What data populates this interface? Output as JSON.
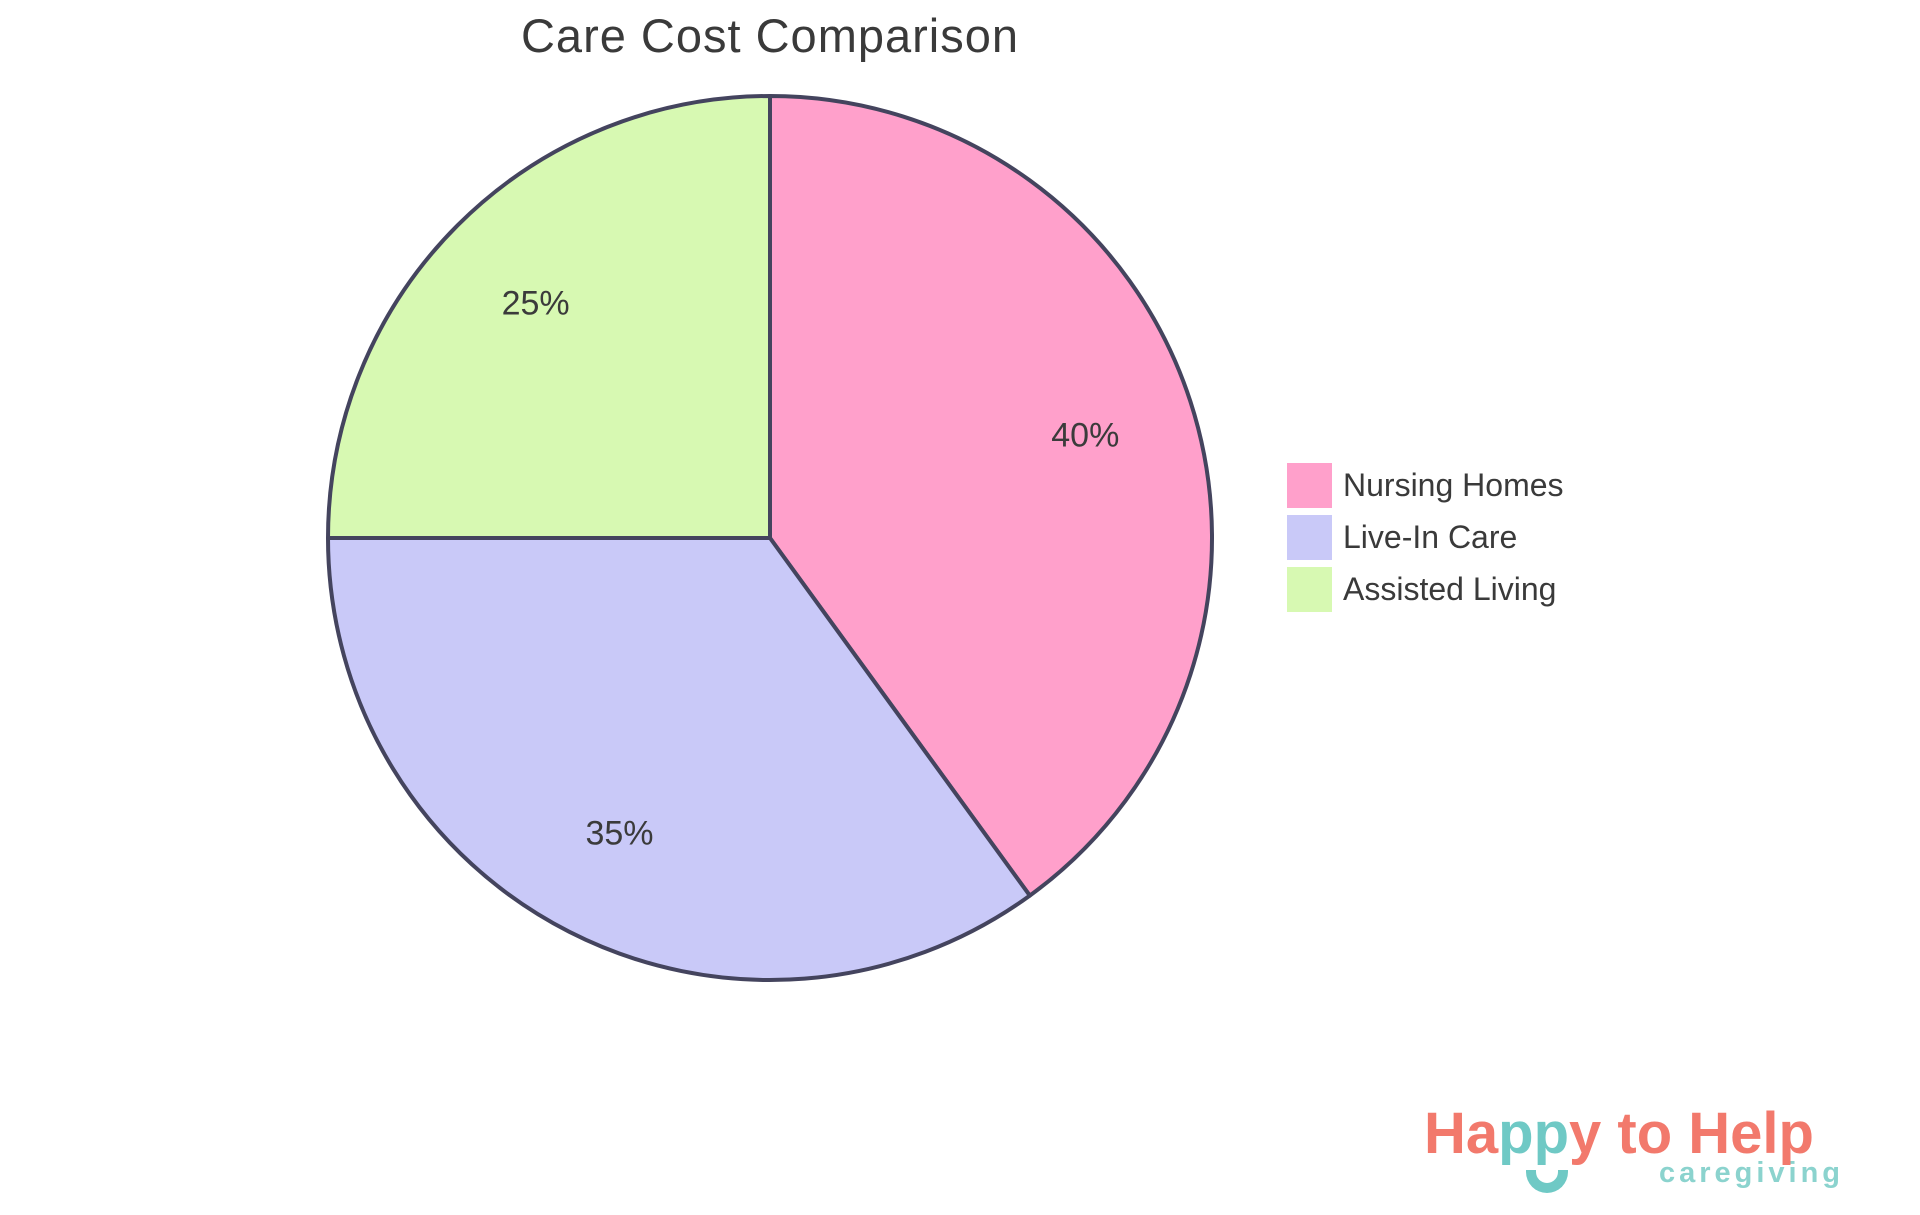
{
  "chart_data": {
    "type": "pie",
    "title": "Care Cost Comparison",
    "categories": [
      "Nursing Homes",
      "Live-In Care",
      "Assisted Living"
    ],
    "values": [
      40,
      35,
      25
    ],
    "unit": "%",
    "slice_labels": [
      "40%",
      "35%",
      "25%"
    ],
    "colors": [
      "#ffa0cb",
      "#c9c9f8",
      "#d7f9b2"
    ],
    "stroke_color": "#44445e",
    "label_color": "#3b3b3b",
    "start_angle_deg": 0,
    "direction": "clockwise",
    "legend_position": "right",
    "grid": "off"
  },
  "legend": {
    "items": [
      {
        "label": "Nursing Homes",
        "color": "#ffa0cb"
      },
      {
        "label": "Live-In Care",
        "color": "#c9c9f8"
      },
      {
        "label": "Assisted Living",
        "color": "#d7f9b2"
      }
    ]
  },
  "logo": {
    "segments": [
      {
        "text": "Ha",
        "color": "#f2796c"
      },
      {
        "text": "pp",
        "color": "#6fc9c5"
      },
      {
        "text": "y to Help",
        "color": "#f2796c"
      }
    ],
    "smile_icon": "smile-arc",
    "smile_color": "#6fc9c5",
    "subtext": "caregiving",
    "subtext_color": "#8bd3ce"
  }
}
